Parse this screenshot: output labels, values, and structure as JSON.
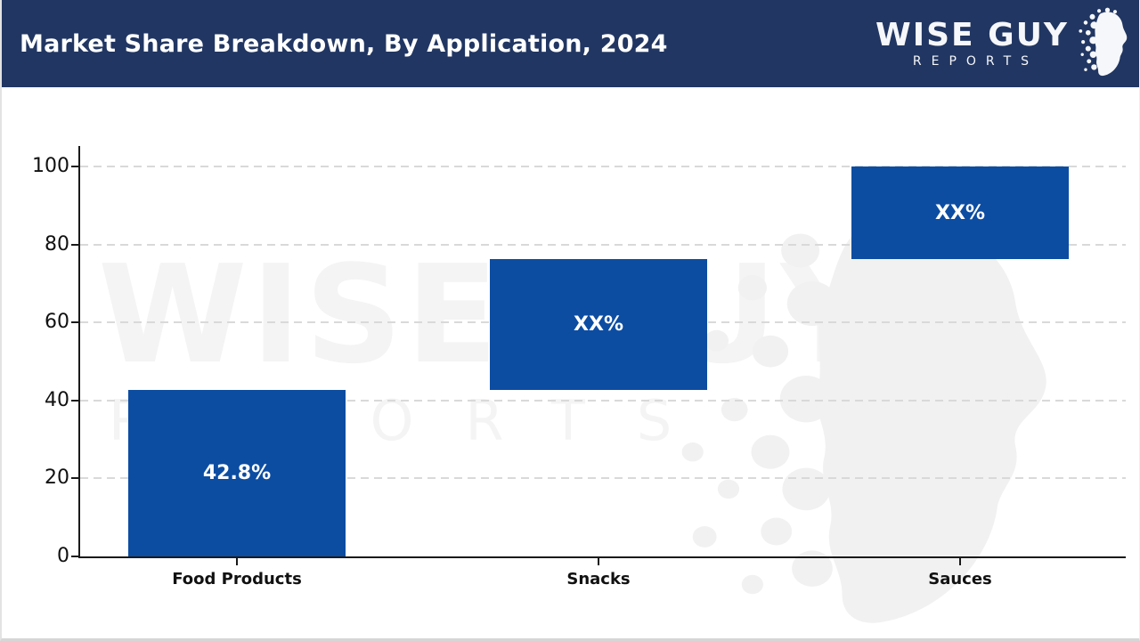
{
  "header": {
    "title": "Market Share Breakdown, By Application, 2024",
    "background_color": "#213662"
  },
  "logo": {
    "wordmark": "WISE GUY",
    "tagline": "REPORTS",
    "head_icon": "dotted-face-profile-icon"
  },
  "watermark": {
    "wordmark": "WISE GUY",
    "tagline": "REPORTS",
    "head_icon": "dotted-face-profile-watermark"
  },
  "chart_data": {
    "type": "bar",
    "variant": "floating-segment-bars-waterfall-style",
    "title": "Market Share Breakdown, By Application, 2024",
    "categories": [
      "Food Products",
      "Snacks",
      "Sauces"
    ],
    "segments": [
      {
        "category": "Food Products",
        "start": 0,
        "end": 42.8,
        "label": "42.8%"
      },
      {
        "category": "Snacks",
        "start": 42.8,
        "end": 76.2,
        "label": "XX%"
      },
      {
        "category": "Sauces",
        "start": 76.2,
        "end": 100,
        "label": "XX%"
      }
    ],
    "xlabel": "",
    "ylabel": "",
    "ylim": [
      0,
      100
    ],
    "yticks": [
      0,
      20,
      40,
      60,
      80,
      100
    ],
    "grid": "horizontal-dashed",
    "legend": "none",
    "bar_color": "#0c4da2",
    "bar_label_color": "#ffffff",
    "axis_color": "#1a1a1a",
    "gridline_color": "#d9d9d9"
  }
}
